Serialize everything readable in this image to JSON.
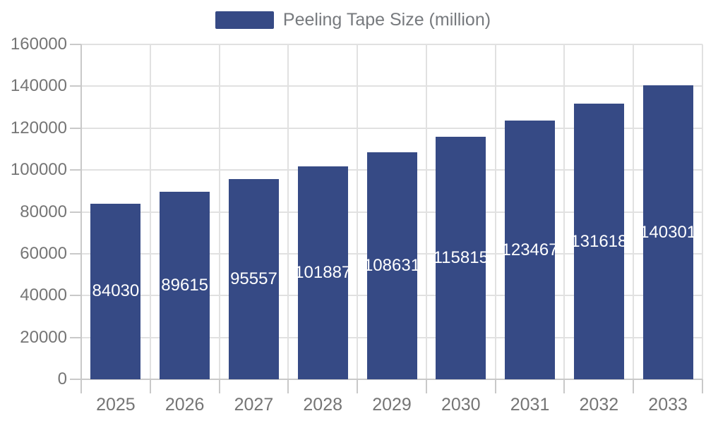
{
  "legend": {
    "label": "Peeling Tape Size (million)"
  },
  "colors": {
    "bar": "#364a85",
    "bar_label_text": "#ffffff",
    "axis_text": "#757575",
    "legend_text": "#777a7e",
    "grid_line": "#e1e1e1",
    "axis_line": "#c9c9c9"
  },
  "chart_data": {
    "type": "bar",
    "title": "Peeling Tape Size (million)",
    "series": [
      {
        "name": "Peeling Tape Size (million)",
        "values": [
          84030,
          89615,
          95557,
          101887,
          108631,
          115815,
          123467,
          131618,
          140301
        ]
      }
    ],
    "categories": [
      "2025",
      "2026",
      "2027",
      "2028",
      "2029",
      "2030",
      "2031",
      "2032",
      "2033"
    ],
    "xlabel": "",
    "ylabel": "",
    "ylim": [
      0,
      160000
    ],
    "yticks": [
      0,
      20000,
      40000,
      60000,
      80000,
      100000,
      120000,
      140000,
      160000
    ],
    "ytick_labels": [
      "0",
      "20000",
      "40000",
      "60000",
      "80000",
      "100000",
      "120000",
      "140000",
      "160000"
    ],
    "grid": true,
    "legend_position": "top-center",
    "bar_value_labels": "inside-center"
  }
}
